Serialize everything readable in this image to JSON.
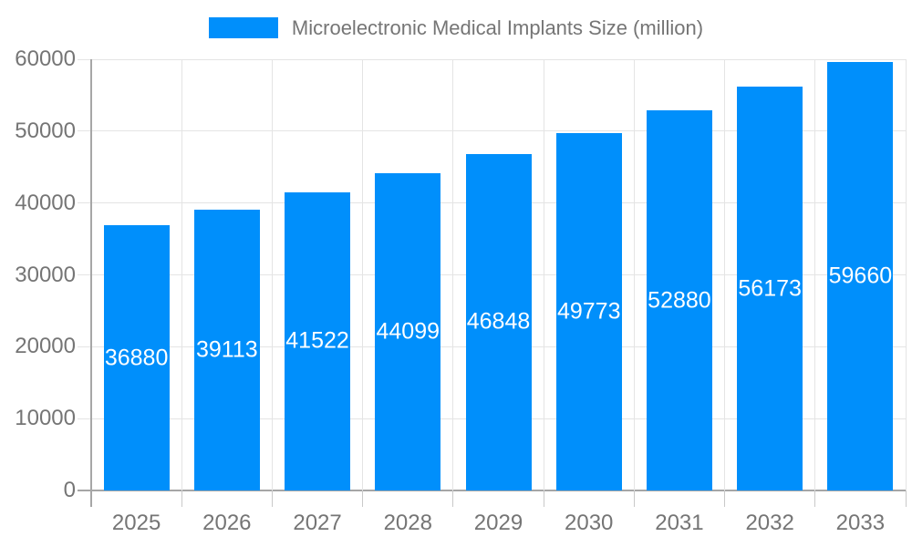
{
  "chart_data": {
    "type": "bar",
    "title": "Microelectronic Medical Implants Size (million)",
    "categories": [
      "2025",
      "2026",
      "2027",
      "2028",
      "2029",
      "2030",
      "2031",
      "2032",
      "2033"
    ],
    "values": [
      36880,
      39113,
      41522,
      44099,
      46848,
      49773,
      52880,
      56173,
      59660
    ],
    "xlabel": "",
    "ylabel": "",
    "ylim": [
      0,
      60000
    ],
    "yticks": [
      0,
      10000,
      20000,
      30000,
      40000,
      50000,
      60000
    ],
    "legend_position": "top",
    "grid": true,
    "colors": {
      "bar": "#008FFB",
      "bar_value_label": "#ffffff",
      "axis_line": "#a6a6a6",
      "gridline": "#e4e4e4",
      "tick": "#c9c9c9",
      "axis_text": "#757575",
      "legend_text": "#757575"
    }
  }
}
